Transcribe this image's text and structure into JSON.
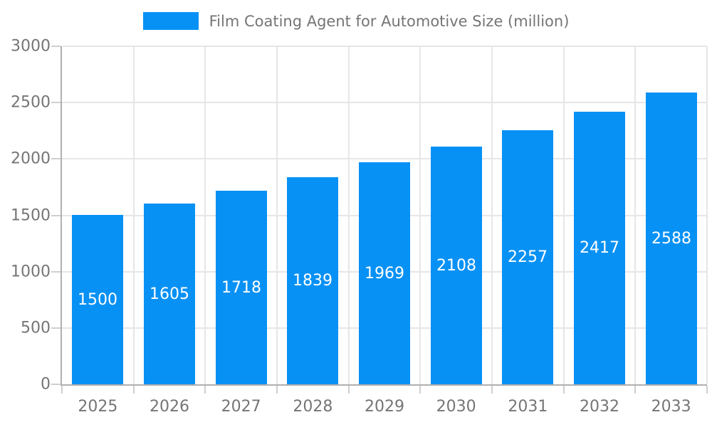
{
  "legend": {
    "label": "Film Coating Agent for Automotive Size (million)"
  },
  "chart_data": {
    "type": "bar",
    "title": "Film Coating Agent for Automotive Size (million)",
    "categories": [
      "2025",
      "2026",
      "2027",
      "2028",
      "2029",
      "2030",
      "2031",
      "2032",
      "2033"
    ],
    "values": [
      1500,
      1605,
      1718,
      1839,
      1969,
      2108,
      2257,
      2417,
      2588
    ],
    "series_name": "Film Coating Agent for Automotive Size (million)",
    "value_labels_inside_bars": true,
    "xlabel": "",
    "ylabel": "",
    "ylim": [
      0,
      3000
    ],
    "yticks": [
      0,
      500,
      1000,
      1500,
      2000,
      2500,
      3000
    ],
    "grid": "on",
    "legend_position": "top",
    "colors": {
      "bar": "#0891f5",
      "value_label": "#ffffff",
      "axis_text": "#757575",
      "axis_line": "#b0b0b0",
      "gridline": "#e6e6e6",
      "tick": "#cfcfcf"
    }
  }
}
